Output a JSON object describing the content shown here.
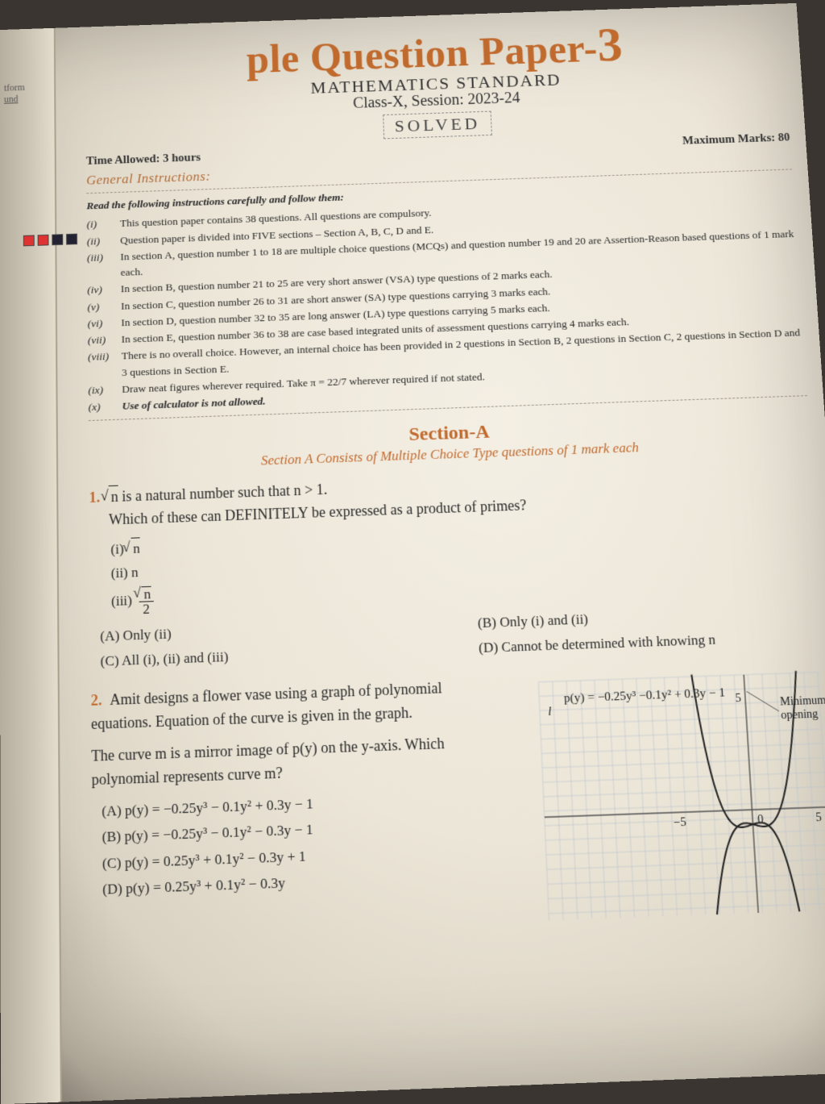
{
  "left": {
    "tab1": "tform",
    "tab2": "und"
  },
  "header": {
    "title_prefix": "ple ",
    "title_main": "Question Paper-",
    "title_num": "3",
    "sub1": "MATHEMATICS STANDARD",
    "sub2": "Class-X, Session: 2023-24",
    "solved": "SOLVED",
    "time": "Time Allowed: 3 hours",
    "marks": "Maximum Marks: 80",
    "gi": "General Instructions:"
  },
  "instructions": {
    "lead": "Read the following instructions carefully and follow them:",
    "items": [
      {
        "rn": "(i)",
        "t": "This question paper contains 38 questions. All questions are compulsory."
      },
      {
        "rn": "(ii)",
        "t": "Question paper is divided into FIVE sections – Section A, B, C, D and E."
      },
      {
        "rn": "(iii)",
        "t": "In section A, question number 1 to 18 are multiple choice questions (MCQs) and question number 19 and 20 are Assertion-Reason based questions of 1 mark each."
      },
      {
        "rn": "(iv)",
        "t": "In section B, question number 21 to 25 are very short answer (VSA) type questions of 2 marks each."
      },
      {
        "rn": "(v)",
        "t": "In section C, question number 26 to 31 are short answer (SA) type questions carrying 3 marks each."
      },
      {
        "rn": "(vi)",
        "t": "In section D, question number 32 to 35 are long answer (LA) type questions carrying 5 marks each."
      },
      {
        "rn": "(vii)",
        "t": "In section E, question number 36 to 38 are case based integrated units of assessment questions carrying 4 marks each."
      },
      {
        "rn": "(viii)",
        "t": "There is no overall choice. However, an internal choice has been provided in 2 questions in Section B, 2 questions in Section C, 2 questions in Section D and 3 questions in Section E."
      },
      {
        "rn": "(ix)",
        "t": "Draw neat figures wherever required. Take π = 22/7 wherever required if not stated."
      },
      {
        "rn": "(x)",
        "t": "Use of calculator is not allowed."
      }
    ]
  },
  "sectionA": {
    "title": "Section-A",
    "sub": "Section A Consists of Multiple Choice Type questions of 1 mark each"
  },
  "q1": {
    "num": "1.",
    "stem_a": " is a natural number such that n > 1.",
    "stem_b": "Which of these can DEFINITELY be expressed as a product of primes?",
    "i": "(i)",
    "ii": "(ii)   n",
    "iii": "(iii)",
    "A": "(A) Only (ii)",
    "B": "(B) Only (i) and (ii)",
    "C": "(C) All (i), (ii) and (iii)",
    "D": "(D) Cannot be determined with knowing n"
  },
  "q2": {
    "num": "2.",
    "p1": "Amit designs a flower vase using a graph of polynomial equations. Equation of the curve is given in the graph.",
    "p2": "The curve m is a mirror image of p(y) on the y-axis. Which polynomial represents curve m?",
    "A": "(A) p(y) = −0.25y³ − 0.1y² + 0.3y − 1",
    "B": "(B) p(y) = −0.25y³ − 0.1y² − 0.3y − 1",
    "C": "(C) p(y) = 0.25y³ + 0.1y² − 0.3y + 1",
    "D": "(D) p(y) = 0.25y³ + 0.1y² − 0.3y"
  },
  "graph": {
    "eq": "p(y) = −0.25y³ −0.1y² + 0.3y − 1",
    "ylabel_5": "5",
    "xlabel_m5": "−5",
    "xlabel_0": "0",
    "xlabel_5": "5",
    "min": "Minimum",
    "open": "opening",
    "l": "l",
    "grid_color": "#b8c4cc",
    "axis_color": "#555",
    "curve_color": "#222",
    "xlim": [
      -10,
      10
    ],
    "ylim": [
      -6,
      8
    ]
  }
}
